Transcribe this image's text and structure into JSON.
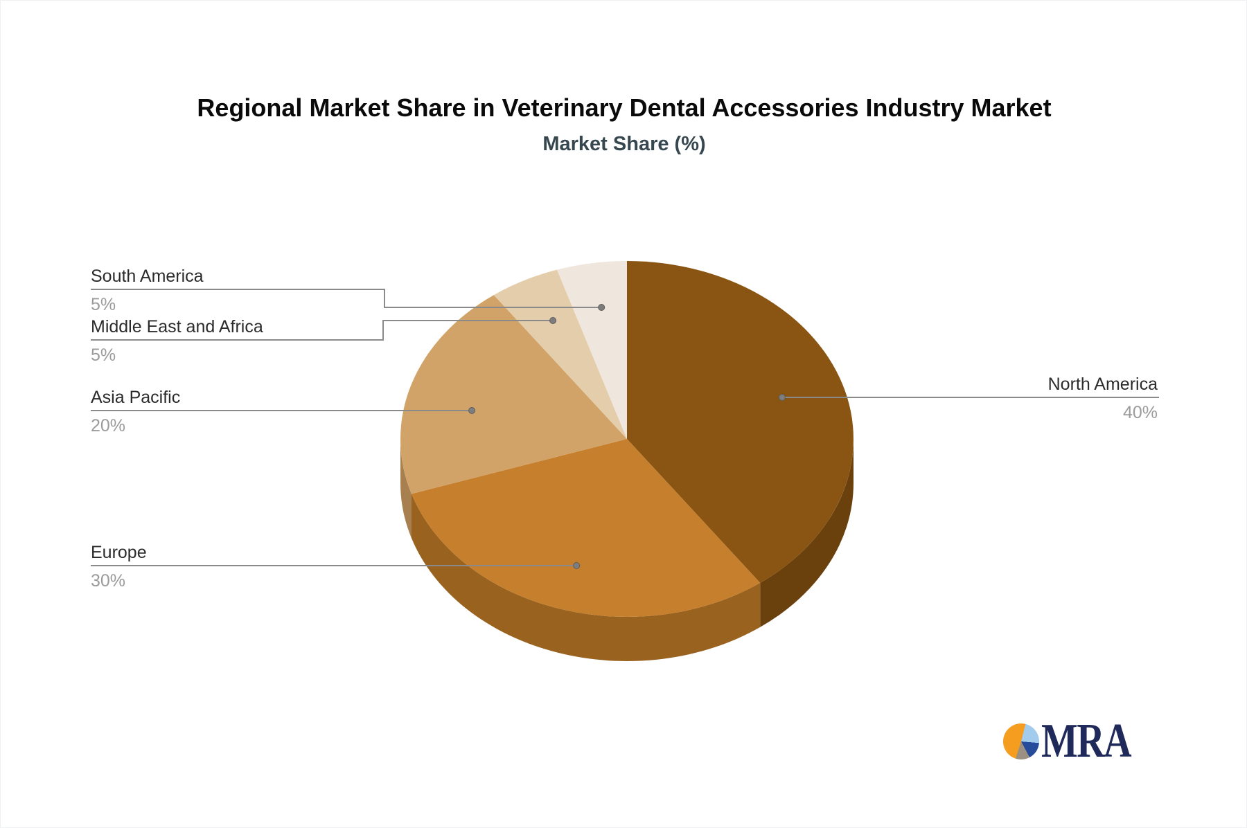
{
  "page": {
    "title": "Regional Market Share in Veterinary Dental Accessories Industry Market",
    "subtitle": "Market Share (%)",
    "background_color": "#ffffff",
    "title_color": "#0a0a0a",
    "subtitle_color": "#37474f"
  },
  "chart_data": {
    "type": "pie",
    "title": "Regional Market Share in Veterinary Dental Accessories Industry Market",
    "subtitle": "Market Share (%)",
    "unit": "%",
    "effect": "3d",
    "start_angle_deg": 0,
    "direction": "clockwise",
    "legend_position": "none",
    "categories": [
      "North America",
      "Europe",
      "Asia Pacific",
      "Middle East and Africa",
      "South America"
    ],
    "series": [
      {
        "name": "Market Share (%)",
        "values": [
          40,
          30,
          20,
          5,
          5
        ]
      }
    ],
    "slices": [
      {
        "label": "North America",
        "value": 40,
        "display": "40%",
        "color": "#8a5512",
        "side_color": "#6a400d"
      },
      {
        "label": "Europe",
        "value": 30,
        "display": "30%",
        "color": "#c67f2d",
        "side_color": "#99621f"
      },
      {
        "label": "Asia Pacific",
        "value": 20,
        "display": "20%",
        "color": "#d2a368",
        "side_color": "#a8804f"
      },
      {
        "label": "Middle East and Africa",
        "value": 5,
        "display": "5%",
        "color": "#e4cdaa",
        "side_color": "#b7a382"
      },
      {
        "label": "South America",
        "value": 5,
        "display": "5%",
        "color": "#efe7de",
        "side_color": "#c0b7ae"
      }
    ],
    "label_style": {
      "name_color": "#2b2b2b",
      "percent_color": "#9b9b9b",
      "leader_line_color": "#8a8a8a",
      "leader_dot_color": "#7d7d7d"
    }
  },
  "logo": {
    "text": "MRA",
    "text_color": "#1f2a5a",
    "pie_colors": {
      "orange": "#f49d1e",
      "light_blue": "#a3cbec",
      "dark_blue": "#274b9b",
      "gray": "#9c9083"
    }
  }
}
